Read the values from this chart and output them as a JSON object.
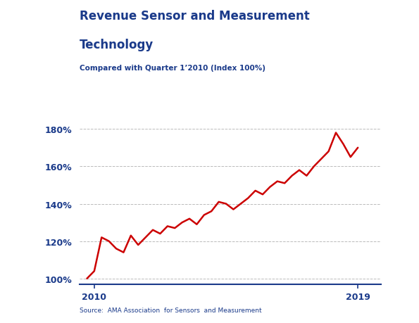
{
  "title_line1": "Revenue Sensor and Measurement",
  "title_line2": "Technology",
  "subtitle": "Compared with Quarter 1’2010 (Index 100%)",
  "source": "Source:  AMA Association  for Sensors  and Measurement",
  "line_color": "#cc0000",
  "title_color": "#1a3a8a",
  "subtitle_color": "#1a3a8a",
  "axis_label_color": "#1a3a8a",
  "source_color": "#1a3a8a",
  "grid_color": "#aaaaaa",
  "background_color": "#ffffff",
  "xlim": [
    2009.5,
    2019.8
  ],
  "ylim": [
    97,
    187
  ],
  "yticks": [
    100,
    120,
    140,
    160,
    180
  ],
  "ytick_labels": [
    "100%",
    "120%",
    "140%",
    "160%",
    "180%"
  ],
  "xticks": [
    2010,
    2019
  ],
  "line_width": 1.8,
  "x": [
    2009.75,
    2010.0,
    2010.25,
    2010.5,
    2010.75,
    2011.0,
    2011.25,
    2011.5,
    2011.75,
    2012.0,
    2012.25,
    2012.5,
    2012.75,
    2013.0,
    2013.25,
    2013.5,
    2013.75,
    2014.0,
    2014.25,
    2014.5,
    2014.75,
    2015.0,
    2015.25,
    2015.5,
    2015.75,
    2016.0,
    2016.25,
    2016.5,
    2016.75,
    2017.0,
    2017.25,
    2017.5,
    2017.75,
    2018.0,
    2018.25,
    2018.5,
    2018.75,
    2019.0
  ],
  "y": [
    100,
    104,
    122,
    120,
    116,
    114,
    123,
    118,
    122,
    126,
    124,
    128,
    127,
    130,
    132,
    129,
    134,
    136,
    141,
    140,
    137,
    140,
    143,
    147,
    145,
    149,
    152,
    151,
    155,
    158,
    155,
    160,
    164,
    168,
    178,
    172,
    165,
    170
  ]
}
